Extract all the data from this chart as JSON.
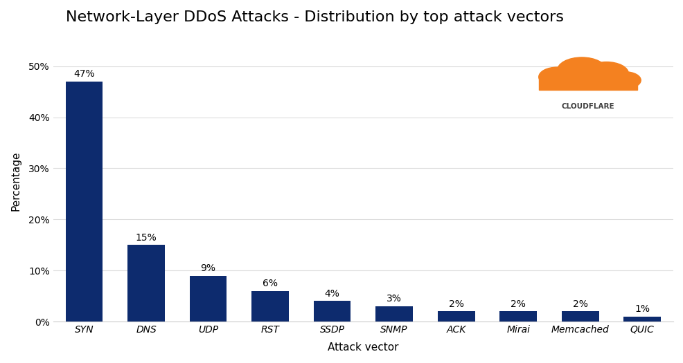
{
  "title": "Network-Layer DDoS Attacks - Distribution by top attack vectors",
  "categories": [
    "SYN",
    "DNS",
    "UDP",
    "RST",
    "SSDP",
    "SNMP",
    "ACK",
    "Mirai",
    "Memcached",
    "QUIC"
  ],
  "values": [
    47,
    15,
    9,
    6,
    4,
    3,
    2,
    2,
    2,
    1
  ],
  "labels": [
    "47%",
    "15%",
    "9%",
    "6%",
    "4%",
    "3%",
    "2%",
    "2%",
    "2%",
    "1%"
  ],
  "bar_color": "#0d2b6e",
  "background_color": "#ffffff",
  "xlabel": "Attack vector",
  "ylabel": "Percentage",
  "yticks": [
    0,
    10,
    20,
    30,
    40,
    50
  ],
  "ytick_labels": [
    "0%",
    "10%",
    "20%",
    "30%",
    "40%",
    "50%"
  ],
  "ylim": [
    0,
    55
  ],
  "title_fontsize": 16,
  "axis_label_fontsize": 11,
  "tick_fontsize": 10,
  "bar_label_fontsize": 10,
  "grid_color": "#dddddd",
  "cloudflare_text": "CLOUDFLARE",
  "cloudflare_color": "#404040"
}
